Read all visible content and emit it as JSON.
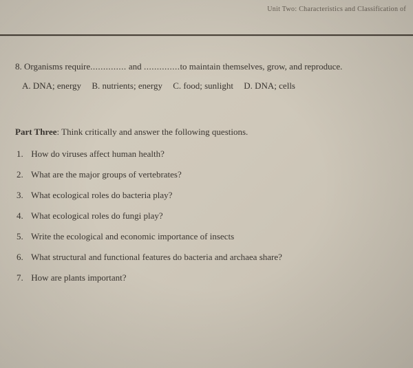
{
  "header": {
    "unit_text": "Unit Two: Characteristics and Classification of"
  },
  "question8": {
    "number": "8.",
    "text_before": "Organisms require",
    "blank1": "..............",
    "mid": " and ",
    "blank2": "..............",
    "text_after": "to maintain themselves, grow, and reproduce.",
    "options": [
      {
        "letter": "A.",
        "text": "DNA; energy"
      },
      {
        "letter": "B.",
        "text": "nutrients; energy"
      },
      {
        "letter": "C.",
        "text": "food; sunlight"
      },
      {
        "letter": "D.",
        "text": "DNA; cells"
      }
    ]
  },
  "part_three": {
    "label": "Part Three",
    "instruction": ": Think critically and answer the following questions.",
    "questions": [
      {
        "num": "1.",
        "text": "How do viruses affect human health?"
      },
      {
        "num": "2.",
        "text": "What are the major groups of vertebrates?"
      },
      {
        "num": "3.",
        "text": "What ecological roles do bacteria play?"
      },
      {
        "num": "4.",
        "text": "What ecological roles do fungi play?"
      },
      {
        "num": "5.",
        "text": "Write the ecological and economic importance of insects"
      },
      {
        "num": "6.",
        "text": "What structural and functional features do bacteria and archaea share?"
      },
      {
        "num": "7.",
        "text": "How are plants important?"
      }
    ]
  },
  "colors": {
    "text": "#3a3530",
    "header_text": "#6a6258",
    "divider": "#4a4238",
    "bg_start": "#d4cdbf",
    "bg_end": "#c5beb0"
  },
  "typography": {
    "body_fontsize": 13,
    "header_fontsize": 10,
    "font_family": "Georgia, Times New Roman, serif"
  }
}
